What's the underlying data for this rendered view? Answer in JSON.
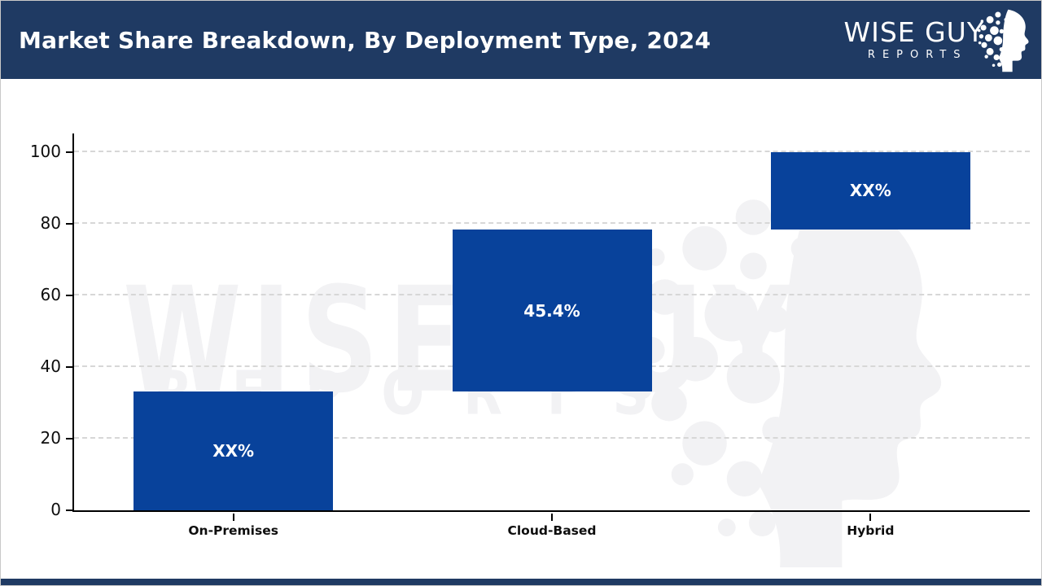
{
  "header": {
    "title": "Market Share Breakdown, By Deployment Type, 2024",
    "logo": {
      "line1": "WISE GUY",
      "line2": "REPORTS"
    }
  },
  "watermark": {
    "line1": "WISE GUY",
    "line2": "REPORTS"
  },
  "colors": {
    "header_bg": "#1f3a63",
    "bar": "#08429b",
    "grid": "#d7d7d7",
    "watermark": "#f2f2f4",
    "value_label_text": "#ffffff",
    "axis_text": "#0d0d0d",
    "title_text": "#ffffff"
  },
  "chart_data": {
    "type": "waterfall",
    "title": "Market Share Breakdown, By Deployment Type, 2024",
    "categories": [
      "On-Premises",
      "Cloud-Based",
      "Hybrid"
    ],
    "segments": [
      {
        "category": "On-Premises",
        "start": 0,
        "end": 33.1,
        "height": 33.1,
        "label": "XX%"
      },
      {
        "category": "Cloud-Based",
        "start": 33.1,
        "end": 78.5,
        "height": 45.4,
        "label": "45.4%"
      },
      {
        "category": "Hybrid",
        "start": 78.5,
        "end": 100,
        "height": 21.5,
        "label": "XX%"
      }
    ],
    "ylim": [
      0,
      100
    ],
    "yticks": [
      0,
      20,
      40,
      60,
      80,
      100
    ],
    "xlabel": "",
    "ylabel": "",
    "grid": "horizontal-dashed",
    "legend": "none",
    "bar_color": "#08429b"
  }
}
